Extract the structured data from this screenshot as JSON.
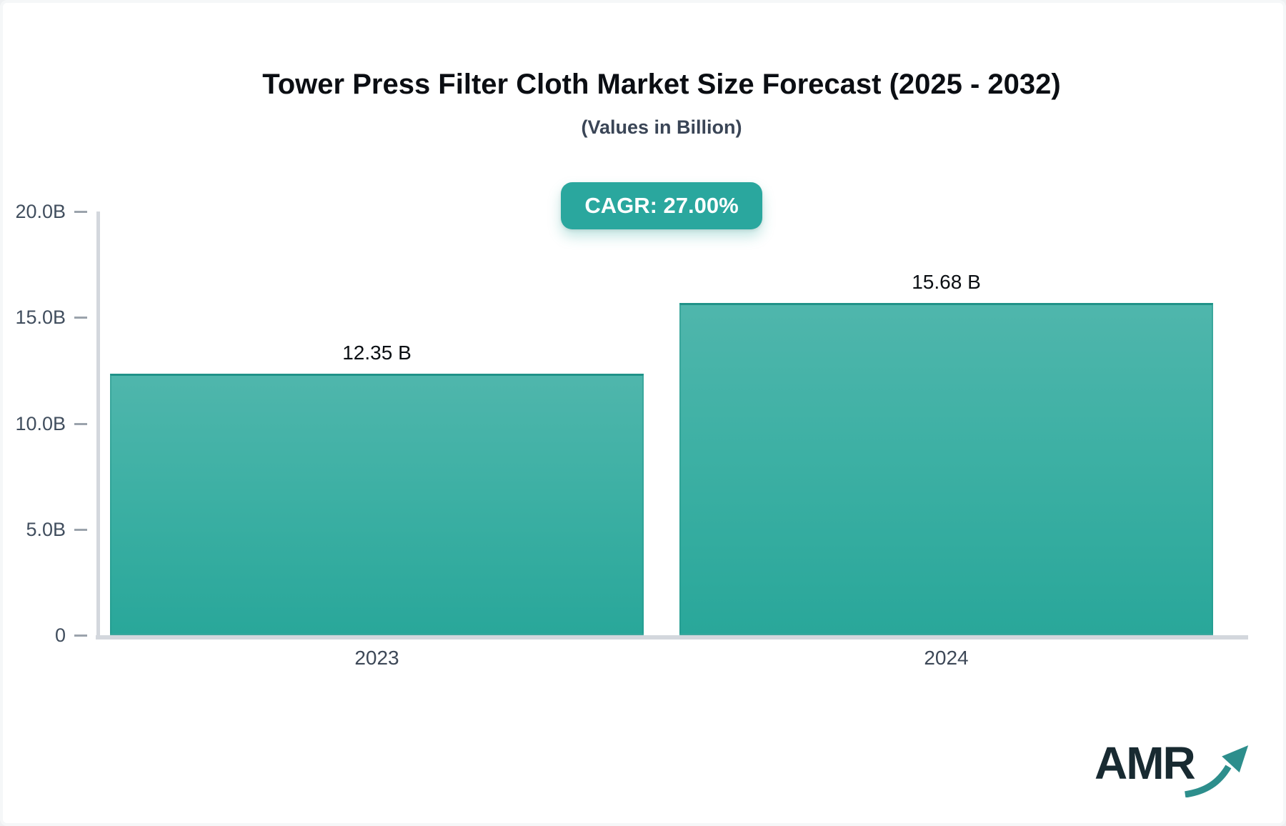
{
  "chart_data": {
    "type": "bar",
    "title": "Tower Press Filter Cloth Market Size Forecast (2025 - 2032)",
    "subtitle": "(Values in Billion)",
    "categories": [
      "2023",
      "2024"
    ],
    "values": [
      12.35,
      15.68
    ],
    "value_labels": [
      "12.35 B",
      "15.68 B"
    ],
    "ylim": [
      0,
      20
    ],
    "yticks": [
      {
        "value": 0,
        "label": "0"
      },
      {
        "value": 5,
        "label": "5.0B"
      },
      {
        "value": 10,
        "label": "10.0B"
      },
      {
        "value": 15,
        "label": "15.0B"
      },
      {
        "value": 20,
        "label": "20.0B"
      }
    ],
    "grid": false,
    "legend": false,
    "bar_color_top": "#4fb6ac",
    "bar_color_bottom": "#29a79a",
    "axis_color": "#d3d7dd",
    "tick_color": "#9ba3ac",
    "label_color": "#414e5e"
  },
  "badge": {
    "label": "CAGR: 27.00%",
    "background": "#2aa79e",
    "text_color": "#ffffff"
  },
  "logo": {
    "text": "AMR",
    "text_color": "#182a31",
    "arrow_color": "#2d8e8c"
  }
}
